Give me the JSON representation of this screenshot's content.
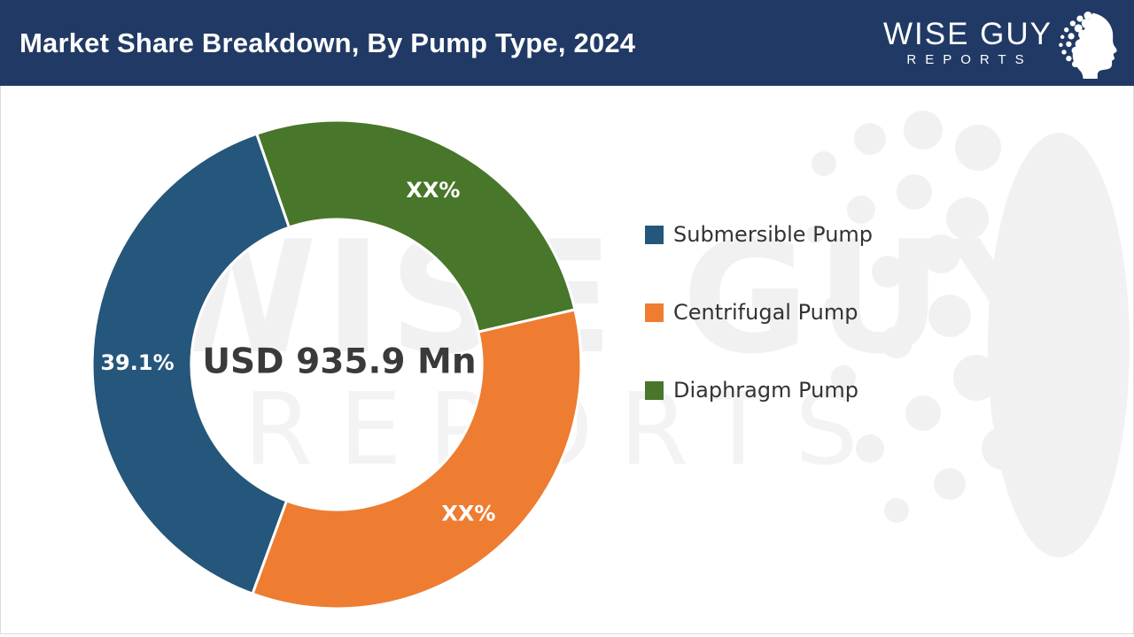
{
  "header": {
    "title": "Market Share Breakdown, By Pump Type, 2024",
    "logo": {
      "wordmark": "WISE GUY",
      "subtitle": "REPORTS"
    }
  },
  "watermark": {
    "line1": "WISE GUY",
    "line2": "REPORTS"
  },
  "chart_data": {
    "type": "pie",
    "donut": true,
    "title": "Market Share Breakdown, By Pump Type, 2024",
    "center_label": "USD 935.9 Mn",
    "units": "percent share",
    "start_angle_deg": -19.1,
    "slices_clockwise": [
      {
        "name": "Diaphragm Pump",
        "value": 26.7,
        "label": "XX%",
        "color": "#48762A"
      },
      {
        "name": "Centrifugal Pump",
        "value": 34.2,
        "label": "XX%",
        "color": "#EE7D31"
      },
      {
        "name": "Submersible Pump",
        "value": 39.1,
        "label": "39.1%",
        "color": "#25567B"
      }
    ],
    "legend_order": [
      2,
      1,
      0
    ],
    "legend_position": "right"
  },
  "colors": {
    "header_bg": "#213A65",
    "text_dark": "#333333",
    "watermark_gray": "#F1F1F1"
  }
}
